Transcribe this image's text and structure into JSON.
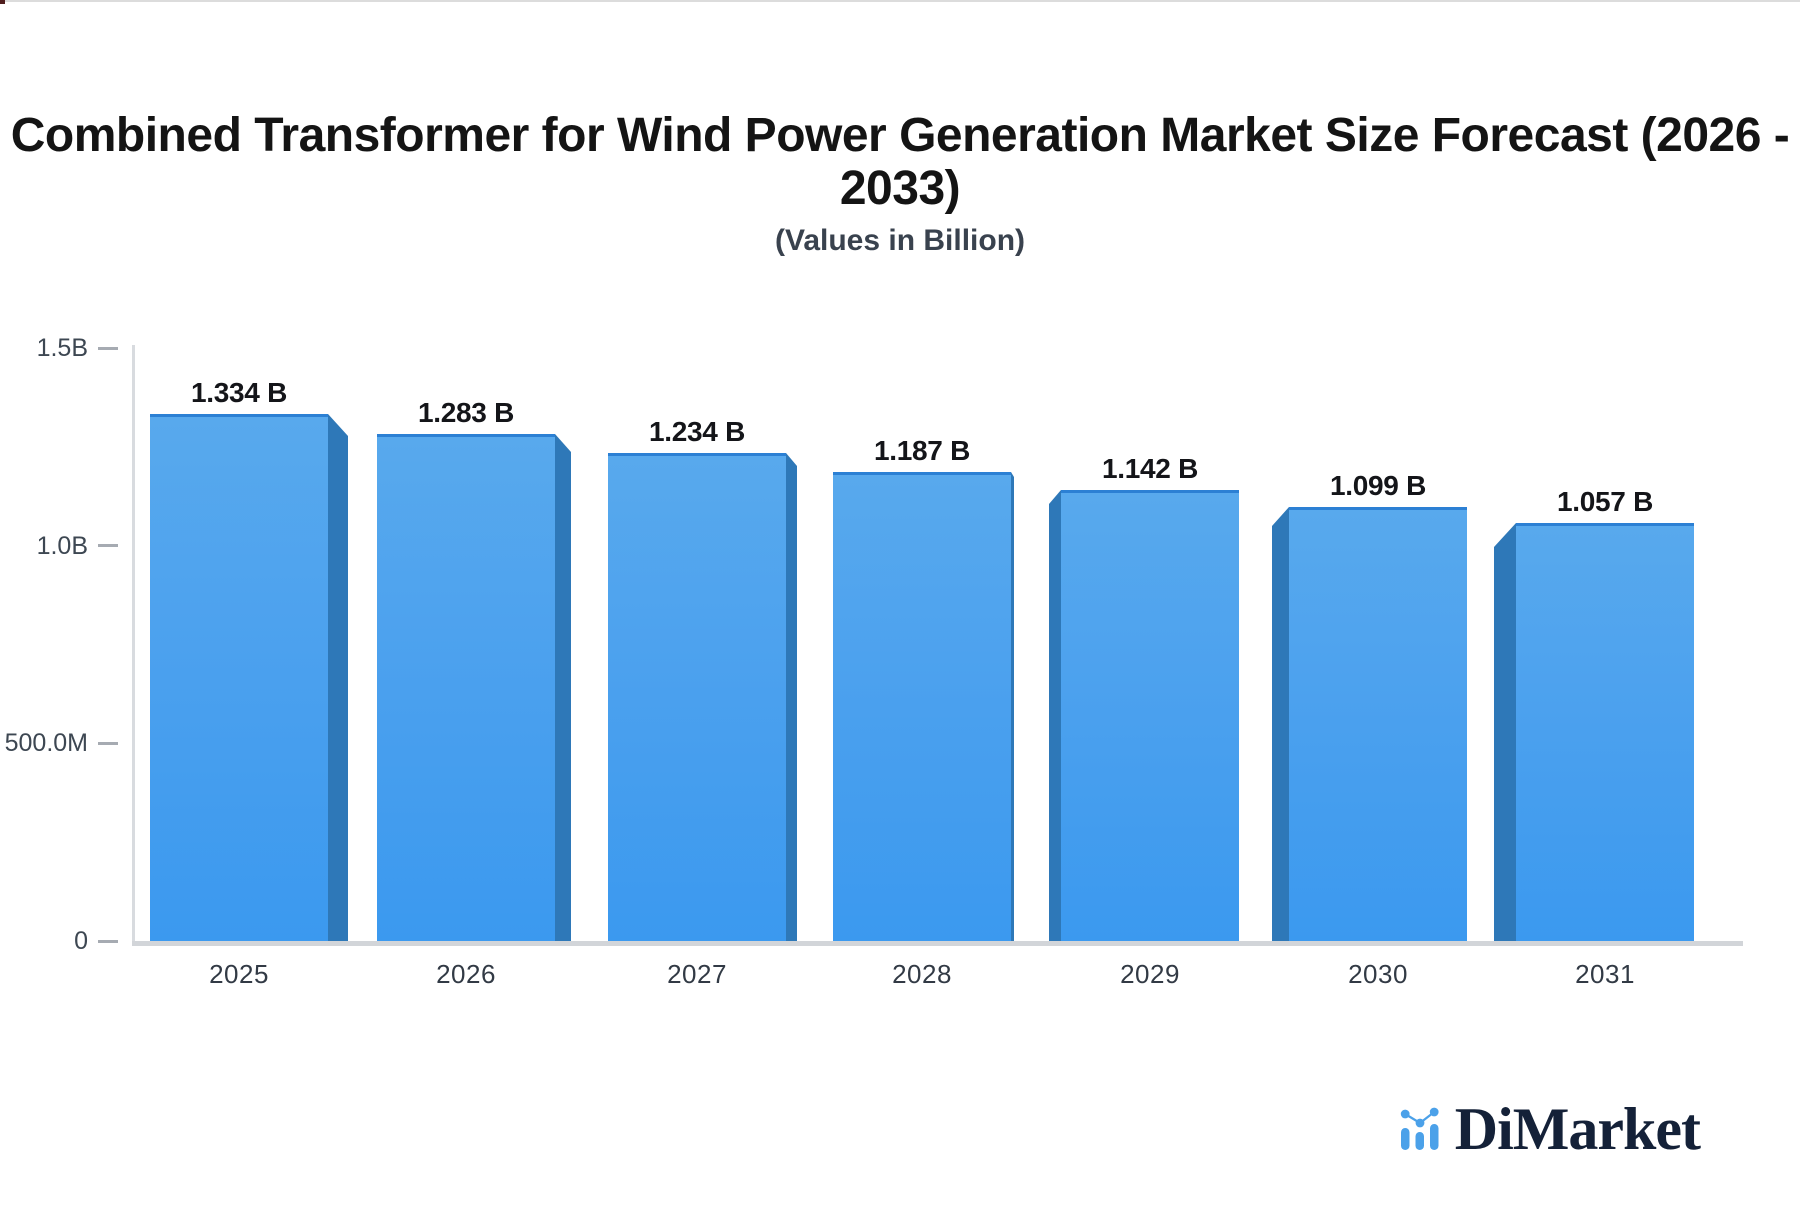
{
  "header": {
    "title_line1": "Combined Transformer for Wind Power Generation Market Size Forecast (2026 -",
    "title_line2": "2033)",
    "subtitle": "(Values in Billion)"
  },
  "chart_data": {
    "type": "bar",
    "title": "Combined Transformer for Wind Power Generation Market Size Forecast (2026 - 2033)",
    "subtitle": "(Values in Billion)",
    "categories": [
      "2025",
      "2026",
      "2027",
      "2028",
      "2029",
      "2030",
      "2031"
    ],
    "values": [
      1.334,
      1.283,
      1.234,
      1.187,
      1.142,
      1.099,
      1.057
    ],
    "value_labels": [
      "1.334 B",
      "1.283 B",
      "1.234 B",
      "1.187 B",
      "1.142 B",
      "1.099 B",
      "1.057 B"
    ],
    "unit": "Billion",
    "xlabel": "",
    "ylabel": "",
    "ylim": [
      0,
      1.5
    ],
    "yticks": [
      {
        "value": 1.5,
        "label": "1.5B"
      },
      {
        "value": 1.0,
        "label": "1.0B"
      },
      {
        "value": 0.5,
        "label": "500.0M"
      },
      {
        "value": 0,
        "label": "0"
      }
    ],
    "grid": false,
    "legend": "none",
    "bar_style_3d": true
  },
  "colors": {
    "bar_front_top": "#58a9ed",
    "bar_front_bottom": "#3b99ef",
    "bar_side": "#2e78b8",
    "bar_top_stroke": "#2c80d4",
    "axis_line": "#d8dbdf",
    "baseline": "#d2d5d9",
    "tick_label": "#3d4752",
    "category_label": "#323a45",
    "value_label": "#141519",
    "title": "#141414",
    "subtitle": "#39424e",
    "logo_navy": "#142138",
    "logo_blue": "#4ba1e9"
  },
  "branding": {
    "logo_text": "DiMarket",
    "logo_icon": "bar-chart-logo-icon"
  }
}
